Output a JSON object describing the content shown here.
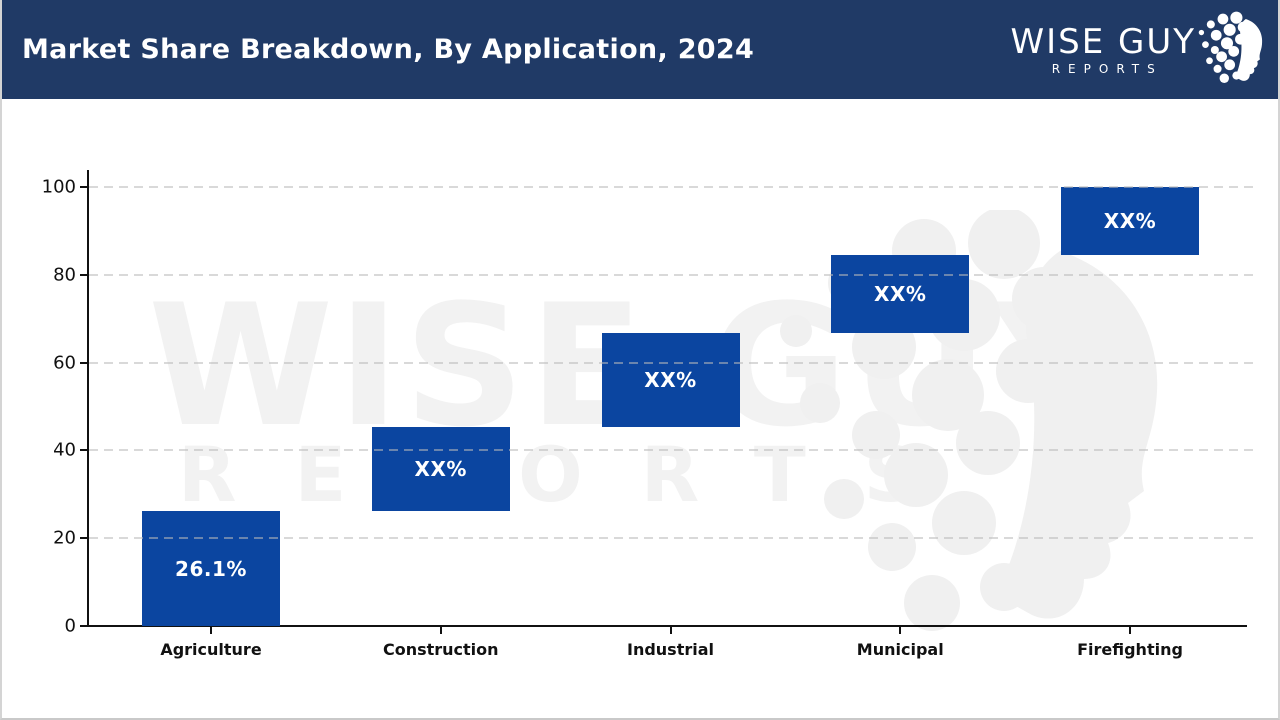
{
  "header": {
    "title": "Market Share Breakdown, By Application, 2024",
    "logo": {
      "primary": "WISE GUY",
      "secondary": "REPORTS"
    }
  },
  "watermark": {
    "primary": "WISE GUY",
    "secondary": "REPORTS"
  },
  "chart_data": {
    "type": "bar",
    "variant": "waterfall",
    "title": "Market Share Breakdown, By Application, 2024",
    "categories": [
      "Agriculture",
      "Construction",
      "Industrial",
      "Municipal",
      "Firefighting"
    ],
    "segments": [
      {
        "label": "Agriculture",
        "start": 0,
        "end": 26.1,
        "value_label": "26.1%"
      },
      {
        "label": "Construction",
        "start": 26.1,
        "end": 45.3,
        "value_label": "XX%"
      },
      {
        "label": "Industrial",
        "start": 45.3,
        "end": 66.7,
        "value_label": "XX%"
      },
      {
        "label": "Municipal",
        "start": 66.7,
        "end": 84.6,
        "value_label": "XX%"
      },
      {
        "label": "Firefighting",
        "start": 84.6,
        "end": 100,
        "value_label": "XX%"
      }
    ],
    "y_ticks": [
      0,
      20,
      40,
      60,
      80,
      100
    ],
    "ylim": [
      0,
      100
    ],
    "xlabel": "",
    "ylabel": "",
    "grid": "horizontal-dashed",
    "legend": "none",
    "bar_color": "#0b45a0"
  },
  "colors": {
    "header_bg": "#203a66",
    "bar": "#0b45a0",
    "grid": "#d9d9d9",
    "axis": "#111111",
    "watermark": "#f2f2f2",
    "value_label": "#ffffff"
  }
}
